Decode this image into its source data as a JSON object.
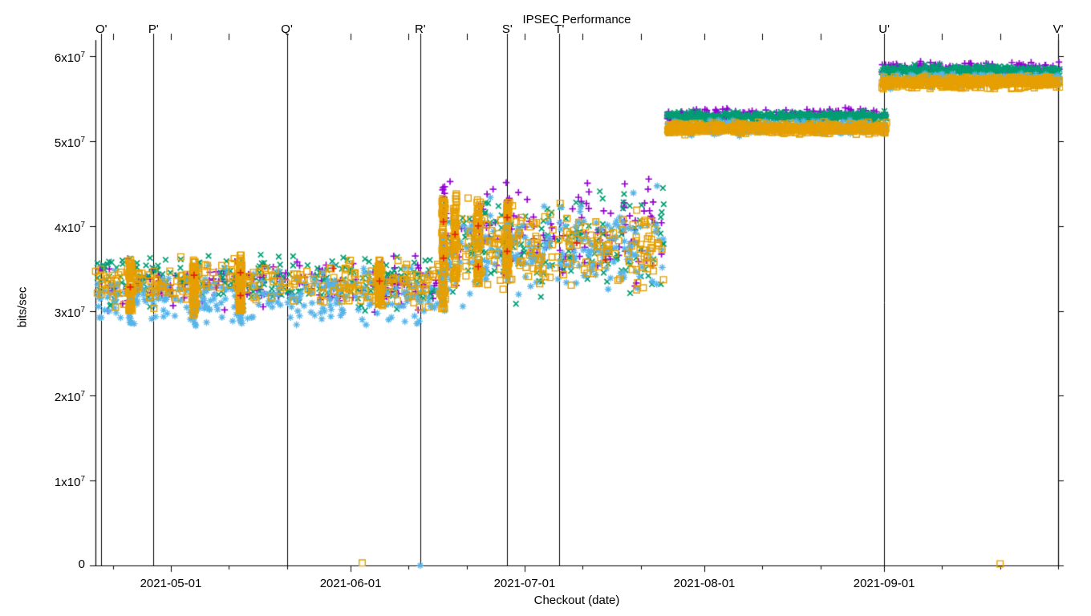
{
  "chart_data": {
    "type": "scatter",
    "title": "IPSEC Performance",
    "xlabel": "Checkout (date)",
    "ylabel": "bits/sec",
    "background_color": "#ffffff",
    "axis_color": "#000000",
    "grid": false,
    "legend": "none",
    "seed": 1337,
    "x_axis": {
      "start_date": "2021-04-18",
      "end_date": "2021-10-01",
      "major_ticks": [
        {
          "date": "2021-05-01",
          "label": "2021-05-01"
        },
        {
          "date": "2021-06-01",
          "label": "2021-06-01"
        },
        {
          "date": "2021-07-01",
          "label": "2021-07-01"
        },
        {
          "date": "2021-08-01",
          "label": "2021-08-01"
        },
        {
          "date": "2021-09-01",
          "label": "2021-09-01"
        }
      ],
      "minor_tick_days_of_month": [
        1,
        11,
        21
      ]
    },
    "y_axis": {
      "min": 0,
      "max": 62000000,
      "ticks": [
        {
          "value": 0,
          "base": "0",
          "exp": null
        },
        {
          "value": 10000000,
          "base": "1x10",
          "exp": "7"
        },
        {
          "value": 20000000,
          "base": "2x10",
          "exp": "7"
        },
        {
          "value": 30000000,
          "base": "3x10",
          "exp": "7"
        },
        {
          "value": 40000000,
          "base": "4x10",
          "exp": "7"
        },
        {
          "value": 50000000,
          "base": "5x10",
          "exp": "7"
        },
        {
          "value": 60000000,
          "base": "6x10",
          "exp": "7"
        }
      ]
    },
    "reference_lines": [
      {
        "label": "O'",
        "date": "2021-04-19"
      },
      {
        "label": "P'",
        "date": "2021-04-28"
      },
      {
        "label": "Q'",
        "date": "2021-05-21"
      },
      {
        "label": "R'",
        "date": "2021-06-13"
      },
      {
        "label": "S'",
        "date": "2021-06-28"
      },
      {
        "label": "T'",
        "date": "2021-07-07"
      },
      {
        "label": "U'",
        "date": "2021-09-01"
      },
      {
        "label": "V'",
        "date": "2021-10-01"
      }
    ],
    "series": [
      {
        "name": "violet-plus",
        "marker": "plus",
        "color": "#9400d3",
        "segments": [
          {
            "from": "2021-04-18",
            "to": "2021-06-17",
            "count": 190,
            "mean": 33200000,
            "sd": 1400000,
            "min": 29500000,
            "max": 36800000,
            "quantize": false
          },
          {
            "from": "2021-06-17",
            "to": "2021-07-25",
            "count": 150,
            "mean": 39200000,
            "sd": 2600000,
            "min": 32500000,
            "max": 45800000,
            "quantize": false
          },
          {
            "from": "2021-07-26",
            "to": "2021-09-01",
            "count": 180,
            "mean": 53100000,
            "sd": 350000,
            "min": 52300000,
            "max": 54200000,
            "quantize": true
          },
          {
            "from": "2021-09-01",
            "to": "2021-10-01",
            "count": 160,
            "mean": 58600000,
            "sd": 350000,
            "min": 57600000,
            "max": 59400000,
            "quantize": true
          }
        ],
        "columns": [
          {
            "date": "2021-06-17",
            "min": 41500000,
            "max": 45000000,
            "count": 12
          },
          {
            "date": "2021-06-28",
            "min": 42000000,
            "max": 44200000,
            "count": 8
          }
        ]
      },
      {
        "name": "green-cross",
        "marker": "cross",
        "color": "#009e73",
        "segments": [
          {
            "from": "2021-04-18",
            "to": "2021-06-17",
            "count": 240,
            "mean": 33600000,
            "sd": 1400000,
            "min": 30000000,
            "max": 37200000,
            "quantize": false
          },
          {
            "from": "2021-06-17",
            "to": "2021-07-25",
            "count": 160,
            "mean": 38500000,
            "sd": 2600000,
            "min": 30500000,
            "max": 45500000,
            "quantize": false
          },
          {
            "from": "2021-07-26",
            "to": "2021-09-01",
            "count": 430,
            "mean": 52900000,
            "sd": 260000,
            "min": 52200000,
            "max": 53700000,
            "quantize": true
          },
          {
            "from": "2021-09-01",
            "to": "2021-10-01",
            "count": 370,
            "mean": 58300000,
            "sd": 280000,
            "min": 57400000,
            "max": 59100000,
            "quantize": true
          }
        ],
        "columns": []
      },
      {
        "name": "blue-asterisk",
        "marker": "asterisk",
        "color": "#56b4e9",
        "segments": [
          {
            "from": "2021-04-18",
            "to": "2021-06-17",
            "count": 300,
            "mean": 31600000,
            "sd": 1600000,
            "min": 28000000,
            "max": 35500000,
            "quantize": false
          },
          {
            "from": "2021-06-17",
            "to": "2021-07-25",
            "count": 230,
            "mean": 37000000,
            "sd": 2300000,
            "min": 30000000,
            "max": 45200000,
            "quantize": false
          },
          {
            "from": "2021-07-26",
            "to": "2021-09-01",
            "count": 300,
            "mean": 51600000,
            "sd": 400000,
            "min": 50200000,
            "max": 52500000,
            "quantize": true
          },
          {
            "from": "2021-09-01",
            "to": "2021-10-01",
            "count": 270,
            "mean": 57200000,
            "sd": 360000,
            "min": 55600000,
            "max": 58000000,
            "quantize": true
          }
        ],
        "columns": [
          {
            "date": "2021-04-24",
            "min": 28500000,
            "max": 32500000,
            "count": 22
          },
          {
            "date": "2021-05-05",
            "min": 28200000,
            "max": 32000000,
            "count": 22
          },
          {
            "date": "2021-05-13",
            "min": 28500000,
            "max": 33000000,
            "count": 18
          },
          {
            "date": "2021-06-17",
            "min": 29500000,
            "max": 39500000,
            "count": 26
          },
          {
            "date": "2021-06-28",
            "min": 33000000,
            "max": 40500000,
            "count": 20
          }
        ]
      },
      {
        "name": "orange-square",
        "marker": "square",
        "color": "#e69f00",
        "segments": [
          {
            "from": "2021-04-18",
            "to": "2021-06-17",
            "count": 250,
            "mean": 33200000,
            "sd": 1300000,
            "min": 30000000,
            "max": 36600000,
            "quantize": false
          },
          {
            "from": "2021-06-17",
            "to": "2021-07-25",
            "count": 200,
            "mean": 37400000,
            "sd": 2100000,
            "min": 32000000,
            "max": 43500000,
            "quantize": false
          },
          {
            "from": "2021-07-26",
            "to": "2021-09-01",
            "count": 430,
            "mean": 51500000,
            "sd": 300000,
            "min": 50700000,
            "max": 52300000,
            "quantize": true
          },
          {
            "from": "2021-09-01",
            "to": "2021-10-01",
            "count": 380,
            "mean": 56900000,
            "sd": 320000,
            "min": 56100000,
            "max": 57700000,
            "quantize": true
          }
        ],
        "columns": [
          {
            "date": "2021-04-24",
            "min": 30000000,
            "max": 36200000,
            "count": 65
          },
          {
            "date": "2021-05-05",
            "min": 29500000,
            "max": 36000000,
            "count": 70
          },
          {
            "date": "2021-05-13",
            "min": 30000000,
            "max": 36600000,
            "count": 70
          },
          {
            "date": "2021-06-06",
            "min": 30500000,
            "max": 36000000,
            "count": 60
          },
          {
            "date": "2021-06-17",
            "min": 29500000,
            "max": 43800000,
            "count": 90
          },
          {
            "date": "2021-06-19",
            "min": 32500000,
            "max": 44000000,
            "count": 70
          },
          {
            "date": "2021-06-23",
            "min": 33000000,
            "max": 43200000,
            "count": 65
          },
          {
            "date": "2021-06-28",
            "min": 33500000,
            "max": 43000000,
            "count": 70
          }
        ]
      },
      {
        "name": "red-plus",
        "marker": "plus",
        "color": "#e51e10",
        "segments": [],
        "columns": [],
        "points": [
          {
            "date": "2021-04-24",
            "value": 32800000
          },
          {
            "date": "2021-05-05",
            "value": 34200000
          },
          {
            "date": "2021-05-13",
            "value": 34500000
          },
          {
            "date": "2021-05-13",
            "value": 31800000
          },
          {
            "date": "2021-05-29",
            "value": 35000000
          },
          {
            "date": "2021-06-06",
            "value": 33500000
          },
          {
            "date": "2021-06-17",
            "value": 40500000
          },
          {
            "date": "2021-06-17",
            "value": 36200000
          },
          {
            "date": "2021-06-19",
            "value": 39000000
          },
          {
            "date": "2021-06-23",
            "value": 40000000
          },
          {
            "date": "2021-06-23",
            "value": 35200000
          },
          {
            "date": "2021-06-28",
            "value": 41000000
          },
          {
            "date": "2021-06-28",
            "value": 37000000
          },
          {
            "date": "2021-07-10",
            "value": 38000000
          },
          {
            "date": "2021-07-15",
            "value": 36000000
          }
        ]
      }
    ],
    "outliers": [
      {
        "series": "orange-square",
        "date": "2021-06-03",
        "value": 300000
      },
      {
        "series": "blue-asterisk",
        "date": "2021-06-13",
        "value": 0
      },
      {
        "series": "orange-square",
        "date": "2021-09-21",
        "value": 200000
      }
    ]
  }
}
